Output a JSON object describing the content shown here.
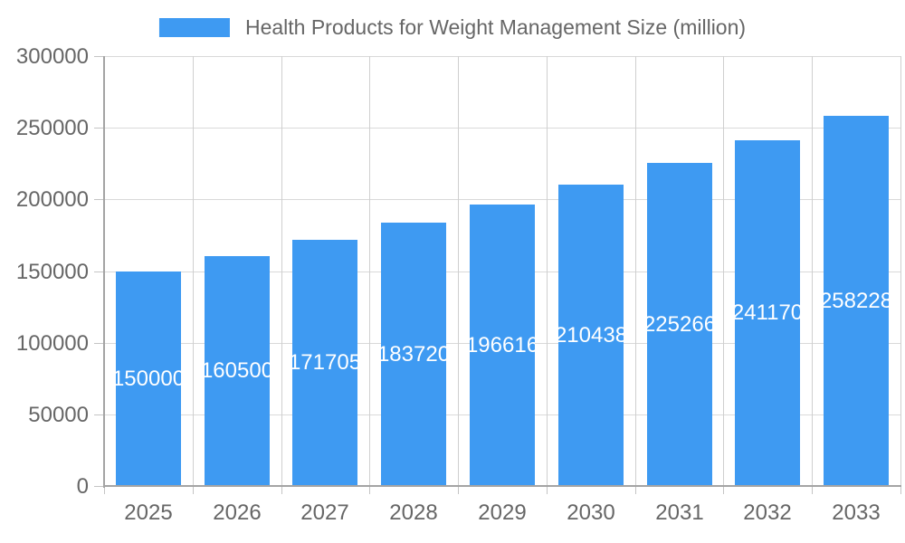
{
  "chart_data": {
    "type": "bar",
    "title": "Health Products for Weight Management Size (million)",
    "categories": [
      "2025",
      "2026",
      "2027",
      "2028",
      "2029",
      "2030",
      "2031",
      "2032",
      "2033"
    ],
    "values": [
      150000,
      160500,
      171705,
      183720,
      196616,
      210438,
      225266,
      241170,
      258228
    ],
    "value_labels": [
      "150000",
      "160500",
      "171705",
      "183720",
      "196616",
      "210438",
      "225266",
      "241170",
      "258228"
    ],
    "xlabel": "",
    "ylabel": "",
    "ylim": [
      0,
      300000
    ],
    "y_ticks": [
      0,
      50000,
      100000,
      150000,
      200000,
      250000,
      300000
    ],
    "y_tick_labels": [
      "0",
      "50000",
      "100000",
      "150000",
      "200000",
      "250000",
      "300000"
    ],
    "grid": true,
    "legend_position": "top",
    "colors": {
      "bar": "#3e9af2",
      "value_label_text": "#ffffff",
      "tick_text": "#666666",
      "legend_text": "#666666",
      "gridline": "#d9d9d9",
      "axis_line": "#a4a4a4"
    }
  }
}
